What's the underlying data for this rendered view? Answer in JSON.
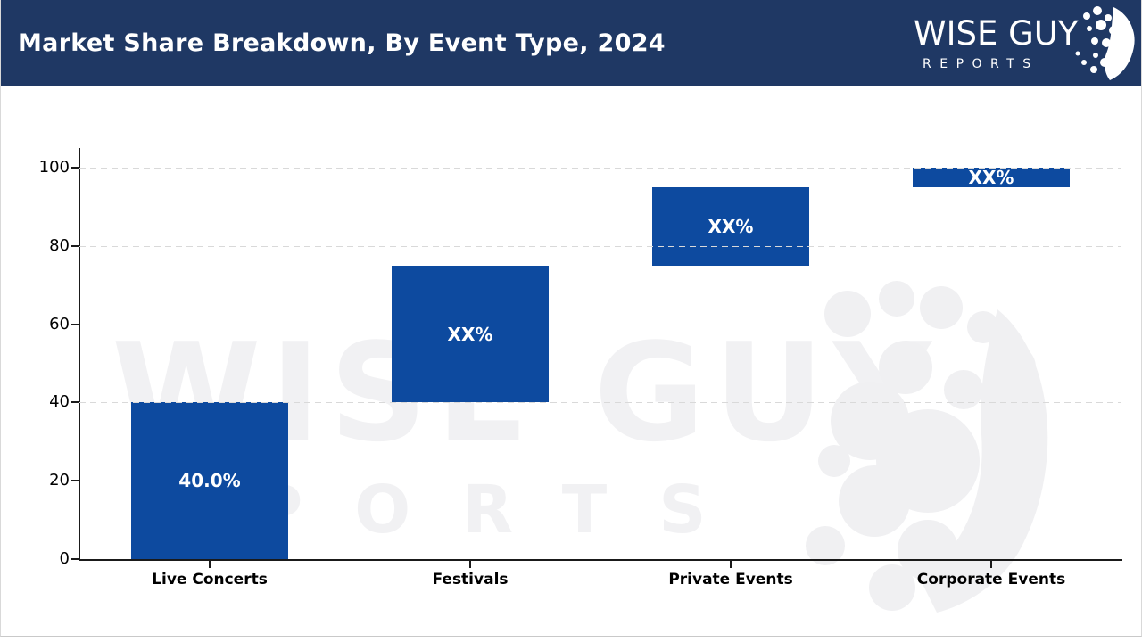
{
  "header": {
    "title": "Market Share Breakdown, By Event Type, 2024",
    "logo": {
      "line1": "WISE GUY",
      "line2": "R E P O R T S"
    }
  },
  "watermark": {
    "line1": "WISE GUY",
    "line2": "PORTS"
  },
  "colors": {
    "header_bg": "#1f3864",
    "bar": "#0d4a9f",
    "grid": "#d9d9d9",
    "axis": "#1a1a1a",
    "bar_label": "#ffffff",
    "watermark": "#f1f1f3"
  },
  "chart_data": {
    "type": "bar",
    "subtype": "waterfall",
    "title": "Market Share Breakdown, By Event Type, 2024",
    "categories": [
      "Live Concerts",
      "Festivals",
      "Private Events",
      "Corporate Events"
    ],
    "series": [
      {
        "name": "Market Share",
        "segments": [
          {
            "category": "Live Concerts",
            "start": 0,
            "end": 40,
            "label": "40.0%"
          },
          {
            "category": "Festivals",
            "start": 40,
            "end": 75,
            "label": "XX%"
          },
          {
            "category": "Private Events",
            "start": 75,
            "end": 95,
            "label": "XX%"
          },
          {
            "category": "Corporate Events",
            "start": 95,
            "end": 100,
            "label": "XX%"
          }
        ]
      }
    ],
    "ylim": [
      0,
      105
    ],
    "yticks": [
      0,
      20,
      40,
      60,
      80,
      100
    ],
    "grid": "horizontal-dashed-over-bars",
    "legend": "none",
    "xlabel": "",
    "ylabel": ""
  }
}
